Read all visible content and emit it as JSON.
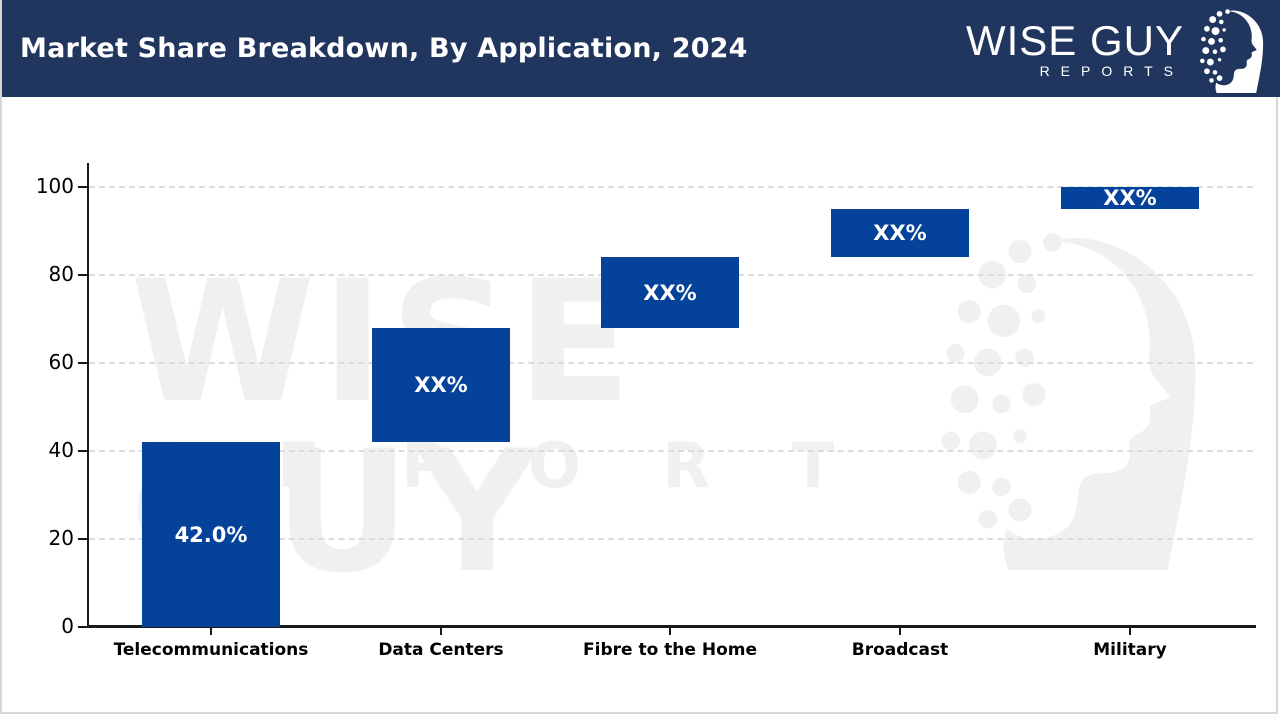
{
  "header": {
    "title": "Market Share Breakdown, By Application, 2024",
    "logo": {
      "line1": "WISE GUY",
      "line2": "REPORTS"
    }
  },
  "watermark": {
    "line1": "WISE GUY",
    "line2": "R E P O R T S"
  },
  "colors": {
    "header_bg": "#21365f",
    "bar_blue": "#05429a",
    "bar_label": "#ffffff",
    "axis": "#1a1a1a",
    "gridline": "#dcdcdc",
    "watermark": "#f0f0f0"
  },
  "chart_data": {
    "type": "bar",
    "subtype": "waterfall",
    "title": "Market Share Breakdown, By Application, 2024",
    "categories": [
      "Telecommunications",
      "Data Centers",
      "Fibre to the Home",
      "Broadcast",
      "Military"
    ],
    "segments": [
      {
        "category": "Telecommunications",
        "label": "42.0%",
        "start": 0,
        "value": 42
      },
      {
        "category": "Data Centers",
        "label": "XX%",
        "start": 42,
        "value": 26
      },
      {
        "category": "Fibre to the Home",
        "label": "XX%",
        "start": 68,
        "value": 16
      },
      {
        "category": "Broadcast",
        "label": "XX%",
        "start": 84,
        "value": 11
      },
      {
        "category": "Military",
        "label": "XX%",
        "start": 95,
        "value": 5
      }
    ],
    "yticks": [
      0,
      20,
      40,
      60,
      80,
      100
    ],
    "ylim": [
      0,
      103.8
    ],
    "xlabel": "",
    "ylabel": "",
    "grid": "dashed-horizontal",
    "legend": "none"
  }
}
